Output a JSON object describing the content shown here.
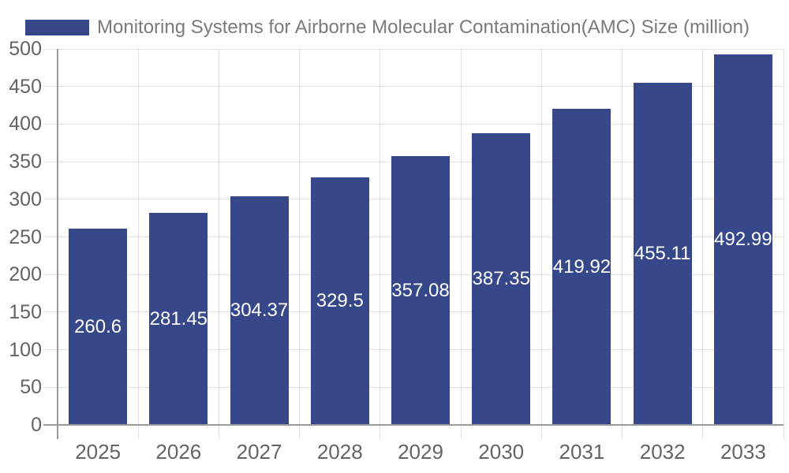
{
  "legend": {
    "label": "Monitoring Systems for Airborne Molecular Contamination(AMC) Size (million)"
  },
  "chart_data": {
    "type": "bar",
    "title": "Monitoring Systems for Airborne Molecular Contamination(AMC) Size (million)",
    "categories": [
      "2025",
      "2026",
      "2027",
      "2028",
      "2029",
      "2030",
      "2031",
      "2032",
      "2033"
    ],
    "series": [
      {
        "name": "Monitoring Systems for Airborne Molecular Contamination(AMC) Size (million)",
        "values": [
          260.6,
          281.45,
          304.37,
          329.5,
          357.08,
          387.35,
          419.92,
          455.11,
          492.99
        ],
        "labels": [
          "260.6",
          "281.45",
          "304.37",
          "329.5",
          "357.08",
          "387.35",
          "419.92",
          "455.11",
          "492.99"
        ]
      }
    ],
    "xlabel": "",
    "ylabel": "",
    "ylim": [
      0,
      500
    ],
    "ytick_step": 50,
    "ytick_labels": [
      "0",
      "50",
      "100",
      "150",
      "200",
      "250",
      "300",
      "350",
      "400",
      "450",
      "500"
    ],
    "grid": true,
    "legend_position": "top-left",
    "value_labels_position": "inside-center"
  },
  "colors": {
    "bar": "#36488a",
    "grid": "#e2e2e2",
    "axis": "#9a9a9a",
    "tick_label": "#646464",
    "legend_text": "#7a7a7a",
    "value_label": "#ffffff",
    "background": "#ffffff"
  }
}
